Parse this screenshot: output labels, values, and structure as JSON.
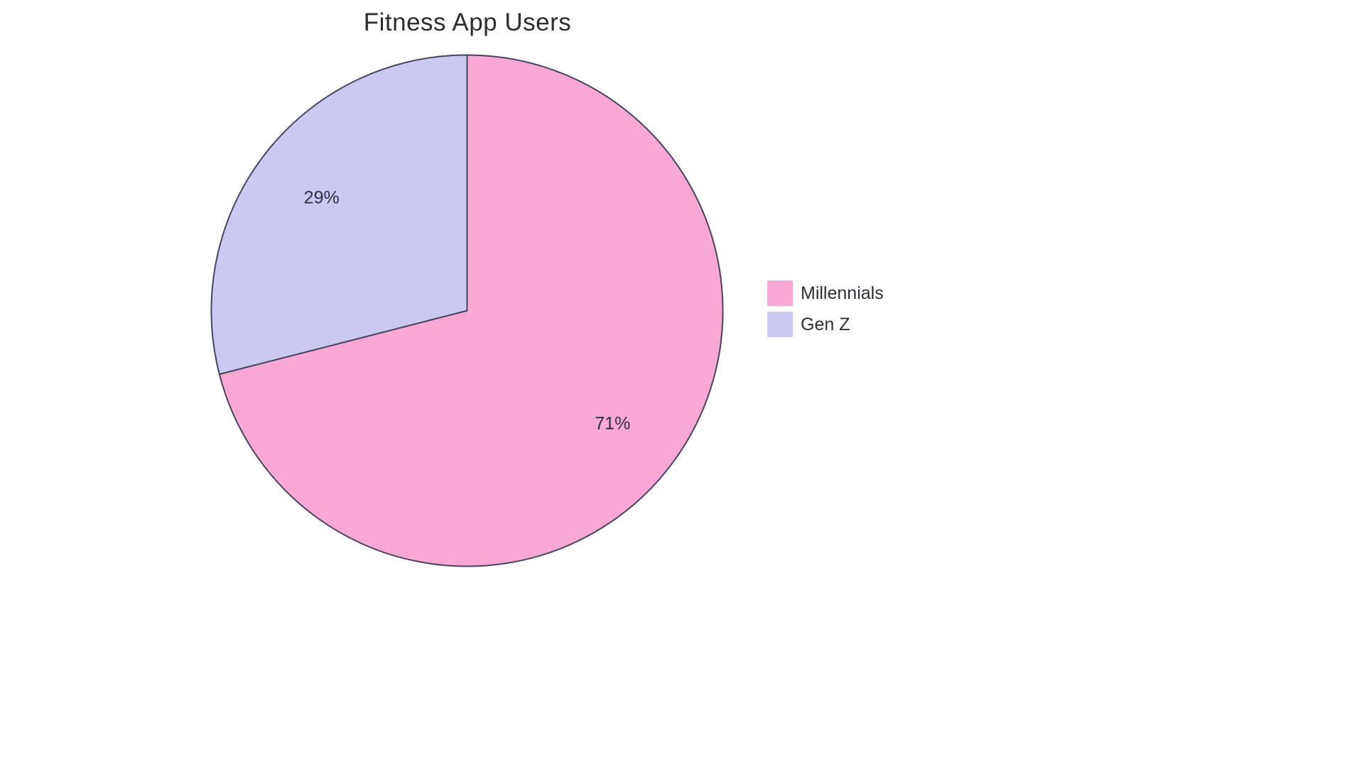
{
  "chart_data": {
    "type": "pie",
    "title": "Fitness App Users",
    "slices": [
      {
        "label": "Millennials",
        "value": 71,
        "display": "71%",
        "color": "#F9A8D4"
      },
      {
        "label": "Gen Z",
        "value": 29,
        "display": "29%",
        "color": "#C9C9F2"
      }
    ],
    "start_angle_deg": 90,
    "direction": "clockwise",
    "legend_position": "right",
    "legend_entries": [
      "Millennials",
      "Gen Z"
    ],
    "stroke_color": "#454560",
    "label_color": "#2f2f3f",
    "title_color": "#2d2d33",
    "background_color": "#ffffff"
  }
}
